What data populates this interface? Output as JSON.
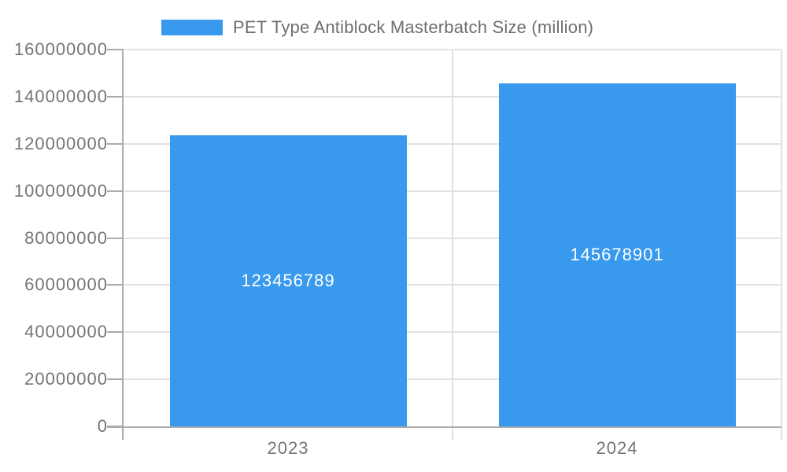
{
  "legend": {
    "label": "PET Type Antiblock Masterbatch Size (million)"
  },
  "chart_data": {
    "type": "bar",
    "title": "PET Type Antiblock Masterbatch Size (million)",
    "categories": [
      "2023",
      "2024"
    ],
    "series": [
      {
        "name": "PET Type Antiblock Masterbatch Size (million)",
        "values": [
          123456789,
          145678901
        ]
      }
    ],
    "data_labels": [
      "123456789",
      "145678901"
    ],
    "xlabel": "",
    "ylabel": "",
    "ylim": [
      0,
      160000000
    ],
    "yticks": [
      0,
      20000000,
      40000000,
      60000000,
      80000000,
      100000000,
      120000000,
      140000000,
      160000000
    ],
    "grid": true,
    "legend_position": "top",
    "colors": {
      "bar": "#3999ec",
      "grid": "#e2e2e2",
      "axis": "#ababab",
      "tick_label": "#757575",
      "x_label": "#757575",
      "bar_label": "#ffffff",
      "legend_text": "#6e6e6e"
    }
  }
}
